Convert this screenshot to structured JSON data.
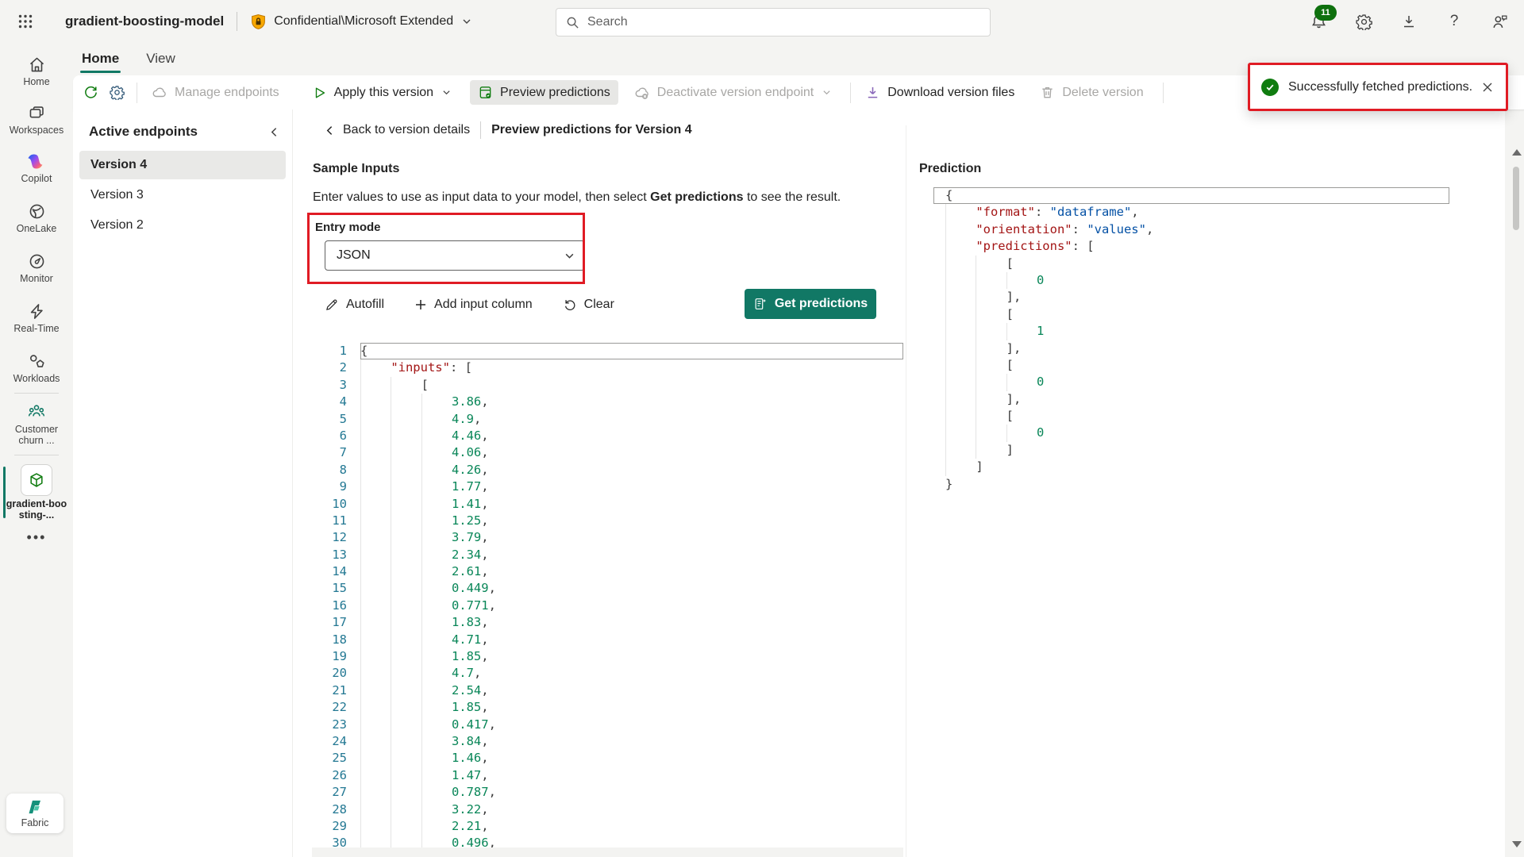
{
  "topbar": {
    "app_title": "gradient-boosting-model",
    "sensitivity_label": "Confidential\\Microsoft Extended",
    "search_placeholder": "Search",
    "notification_count": "11"
  },
  "tabs": {
    "home": "Home",
    "view": "View"
  },
  "toolbar": {
    "manage_endpoints": "Manage endpoints",
    "apply_this_version": "Apply this version",
    "preview_predictions": "Preview predictions",
    "deactivate_version_endpoint": "Deactivate version endpoint",
    "download_version_files": "Download version files",
    "delete_version": "Delete version"
  },
  "toast": {
    "message": "Successfully fetched predictions."
  },
  "rail": {
    "home": "Home",
    "workspaces": "Workspaces",
    "copilot": "Copilot",
    "onelake": "OneLake",
    "monitor": "Monitor",
    "realtime": "Real-Time",
    "workloads": "Workloads",
    "customer_churn": "Customer churn ...",
    "model": "gradient-boosting-...",
    "fabric": "Fabric"
  },
  "endpoints_panel": {
    "title": "Active endpoints",
    "items": [
      "Version 4",
      "Version 3",
      "Version 2"
    ],
    "selected_index": 0
  },
  "main": {
    "back_label": "Back to version details",
    "page_title": "Preview predictions for Version 4",
    "sample_inputs_title": "Sample Inputs",
    "description_prefix": "Enter values to use as input data to your model, then select ",
    "description_bold": "Get predictions",
    "description_suffix": " to see the result.",
    "entry_mode_label": "Entry mode",
    "entry_mode_value": "JSON",
    "autofill_label": "Autofill",
    "add_input_column_label": "Add input column",
    "clear_label": "Clear",
    "get_predictions_label": "Get predictions"
  },
  "editor": {
    "root_key": "inputs",
    "input_values": [
      "3.86",
      "4.9",
      "4.46",
      "4.06",
      "4.26",
      "1.77",
      "1.41",
      "1.25",
      "3.79",
      "2.34",
      "2.61",
      "0.449",
      "0.771",
      "1.83",
      "4.71",
      "1.85",
      "4.7",
      "2.54",
      "1.85",
      "0.417",
      "3.84",
      "1.46",
      "1.47",
      "0.787",
      "3.22",
      "2.21",
      "0.496"
    ]
  },
  "prediction": {
    "title": "Prediction",
    "format": "dataframe",
    "orientation": "values",
    "predictions_key": "predictions",
    "values": [
      0,
      1,
      0,
      0
    ]
  },
  "colors": {
    "accent_teal": "#117865",
    "success_green": "#107c10",
    "annotation_red": "#e01b24",
    "download_purple": "#8764b8",
    "syntax_key": "#a31515",
    "syntax_string": "#0451a5",
    "syntax_number": "#098658",
    "line_number": "#237893"
  }
}
